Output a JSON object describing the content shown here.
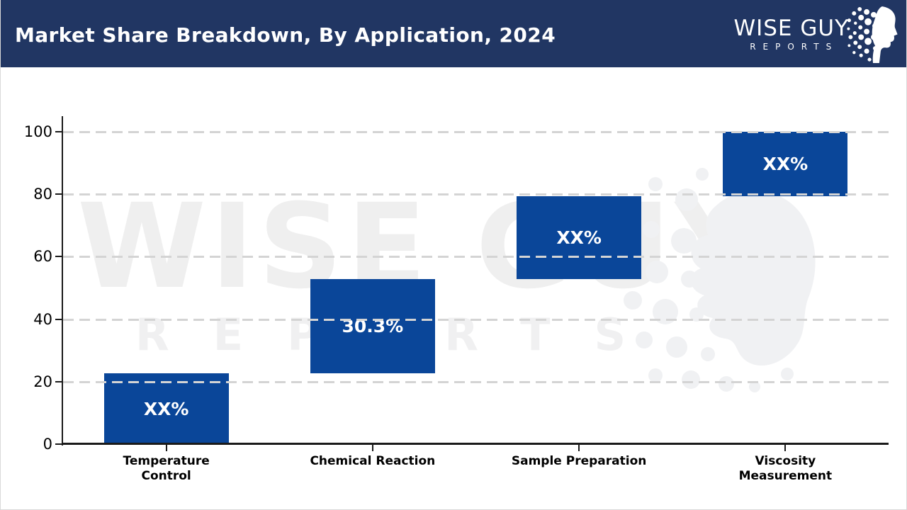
{
  "header": {
    "title": "Market Share Breakdown, By Application, 2024",
    "logo_line1": "WISE GUY",
    "logo_line2": "REPORTS"
  },
  "watermark": {
    "line1": "WISE GUY",
    "line2": "REPORTS"
  },
  "chart_data": {
    "type": "bar",
    "subtype": "floating-waterfall-segments",
    "title": "Market Share Breakdown, By Application, 2024",
    "categories": [
      "Temperature Control",
      "Chemical Reaction",
      "Sample Preparation",
      "Viscosity Measurement"
    ],
    "category_lines": [
      [
        "Temperature",
        "Control"
      ],
      [
        "Chemical Reaction"
      ],
      [
        "Sample Preparation"
      ],
      [
        "Viscosity",
        "Measurement"
      ]
    ],
    "segments": [
      {
        "category": "Temperature Control",
        "start": 0,
        "end": 22.6,
        "label": "XX%"
      },
      {
        "category": "Chemical Reaction",
        "start": 22.6,
        "end": 52.9,
        "label": "30.3%"
      },
      {
        "category": "Sample Preparation",
        "start": 52.9,
        "end": 79.3,
        "label": "XX%"
      },
      {
        "category": "Viscosity Measurement",
        "start": 79.3,
        "end": 100,
        "label": "XX%"
      }
    ],
    "yticks": [
      0,
      20,
      40,
      60,
      80,
      100
    ],
    "ylim": [
      0,
      100
    ],
    "xlabel": "",
    "ylabel": "",
    "grid": "horizontal-dashed",
    "legend": "none",
    "bar_color": "#0a4699",
    "bar_label_color": "#ffffff",
    "grid_color": "#d4d4d4",
    "axis_color": "#1a1a1a",
    "header_bg_color": "#213663",
    "watermark_color": "#efefef"
  }
}
